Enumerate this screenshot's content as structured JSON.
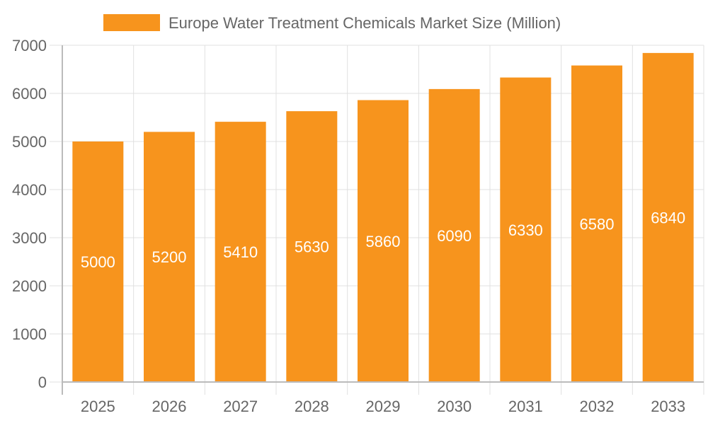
{
  "chart_data": {
    "type": "bar",
    "title": "",
    "xlabel": "",
    "ylabel": "",
    "categories": [
      "2025",
      "2026",
      "2027",
      "2028",
      "2029",
      "2030",
      "2031",
      "2032",
      "2033"
    ],
    "series": [
      {
        "name": "Europe Water Treatment Chemicals Market Size (Million)",
        "values": [
          5000,
          5200,
          5410,
          5630,
          5860,
          6090,
          6330,
          6580,
          6840
        ],
        "color": "#f7941d"
      }
    ],
    "ylim": [
      0,
      7000
    ],
    "yticks": [
      0,
      1000,
      2000,
      3000,
      4000,
      5000,
      6000,
      7000
    ],
    "grid": true,
    "legend": "top-center",
    "data_labels": true,
    "label_color": "#ffffff"
  }
}
